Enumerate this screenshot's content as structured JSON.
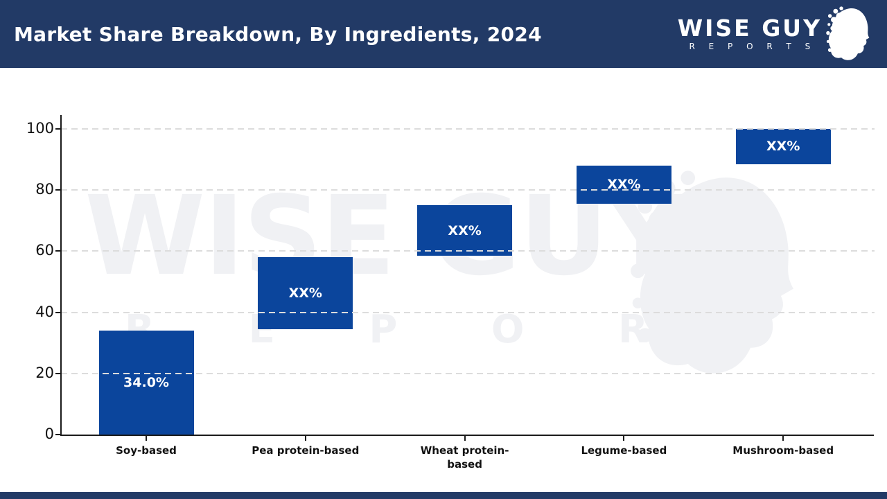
{
  "header": {
    "title": "Market Share Breakdown, By Ingredients, 2024",
    "logo": {
      "name": "WISE GUY",
      "sub": "R E P O R T S"
    }
  },
  "watermark": {
    "name": "WISE GUY",
    "sub": "R E P O R T S"
  },
  "colors": {
    "header_bg": "#223A66",
    "footer_bg": "#223A66",
    "bar": "#0B459C",
    "grid": "#DCDCDC",
    "axis": "#1A1A1A",
    "bar_label_text": "#FFFFFF",
    "watermark": "#F0F1F4"
  },
  "chart_data": {
    "type": "bar",
    "subtype": "waterfall",
    "title": "Market Share Breakdown, By Ingredients, 2024",
    "xlabel": "",
    "ylabel": "",
    "ylim": [
      0,
      105
    ],
    "yticks": [
      0,
      20,
      40,
      60,
      80,
      100
    ],
    "grid": "horizontal-dashed",
    "legend": "none",
    "categories": [
      "Soy-based",
      "Pea protein-based",
      "Wheat protein-based",
      "Legume-based",
      "Mushroom-based"
    ],
    "segments": [
      {
        "category": "Soy-based",
        "tick_label": "Soy-based",
        "start": 0,
        "end": 34.0,
        "label": "34.0%"
      },
      {
        "category": "Pea protein-based",
        "tick_label": "Pea protein-based",
        "start": 34.5,
        "end": 58.0,
        "label": "XX%"
      },
      {
        "category": "Wheat protein-based",
        "tick_label": "Wheat protein-\nbased",
        "start": 58.5,
        "end": 75.0,
        "label": "XX%"
      },
      {
        "category": "Legume-based",
        "tick_label": "Legume-based",
        "start": 75.5,
        "end": 88.0,
        "label": "XX%"
      },
      {
        "category": "Mushroom-based",
        "tick_label": "Mushroom-based",
        "start": 88.5,
        "end": 100.0,
        "label": "XX%"
      }
    ]
  }
}
